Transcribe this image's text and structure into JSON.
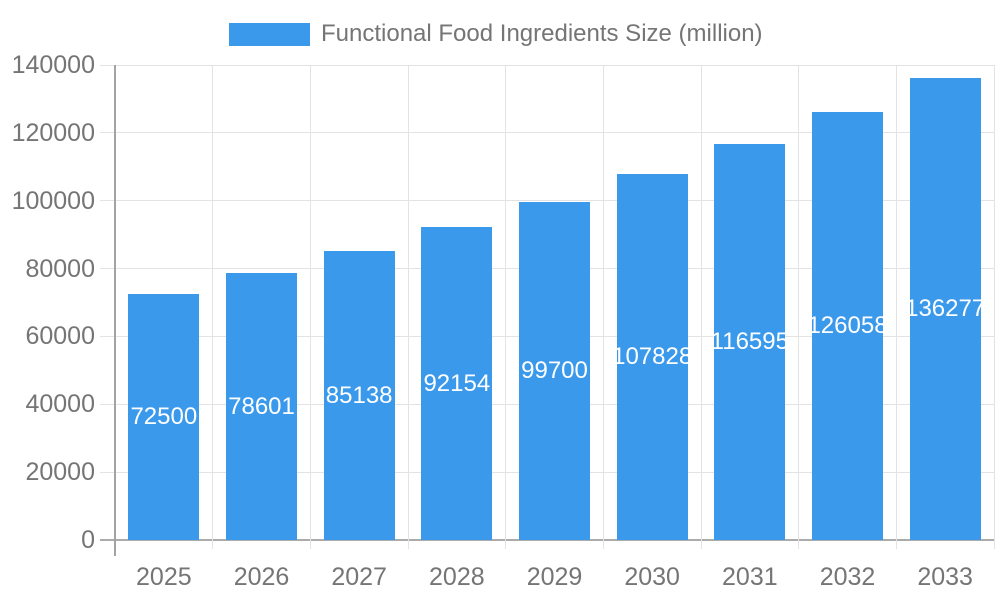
{
  "legend": {
    "label": "Functional Food Ingredients Size (million)"
  },
  "chart_data": {
    "type": "bar",
    "title": "Functional Food Ingredients Size (million)",
    "series": [
      {
        "name": "Functional Food Ingredients Size (million)",
        "values": [
          72500,
          78601,
          85138,
          92154,
          99700,
          107828,
          116595,
          126058,
          136277
        ]
      }
    ],
    "categories": [
      "2025",
      "2026",
      "2027",
      "2028",
      "2029",
      "2030",
      "2031",
      "2032",
      "2033"
    ],
    "values": [
      72500,
      78601,
      85138,
      92154,
      99700,
      107828,
      116595,
      126058,
      136277
    ],
    "xlabel": "",
    "ylabel": "",
    "ylim": [
      0,
      140000
    ],
    "yticks": [
      0,
      20000,
      40000,
      60000,
      80000,
      100000,
      120000,
      140000
    ],
    "ytick_step": 20000,
    "grid": true,
    "legend_position": "top-center",
    "bar_color": "#3B99EC",
    "bar_label_color": "#FFFFFF",
    "axis_text_color": "#757575",
    "gridline_color": "#E3E3E3",
    "axis_line_color": "#A3A3A3",
    "baseline_color": "#ABABAB",
    "background_color": "#FFFFFF"
  }
}
